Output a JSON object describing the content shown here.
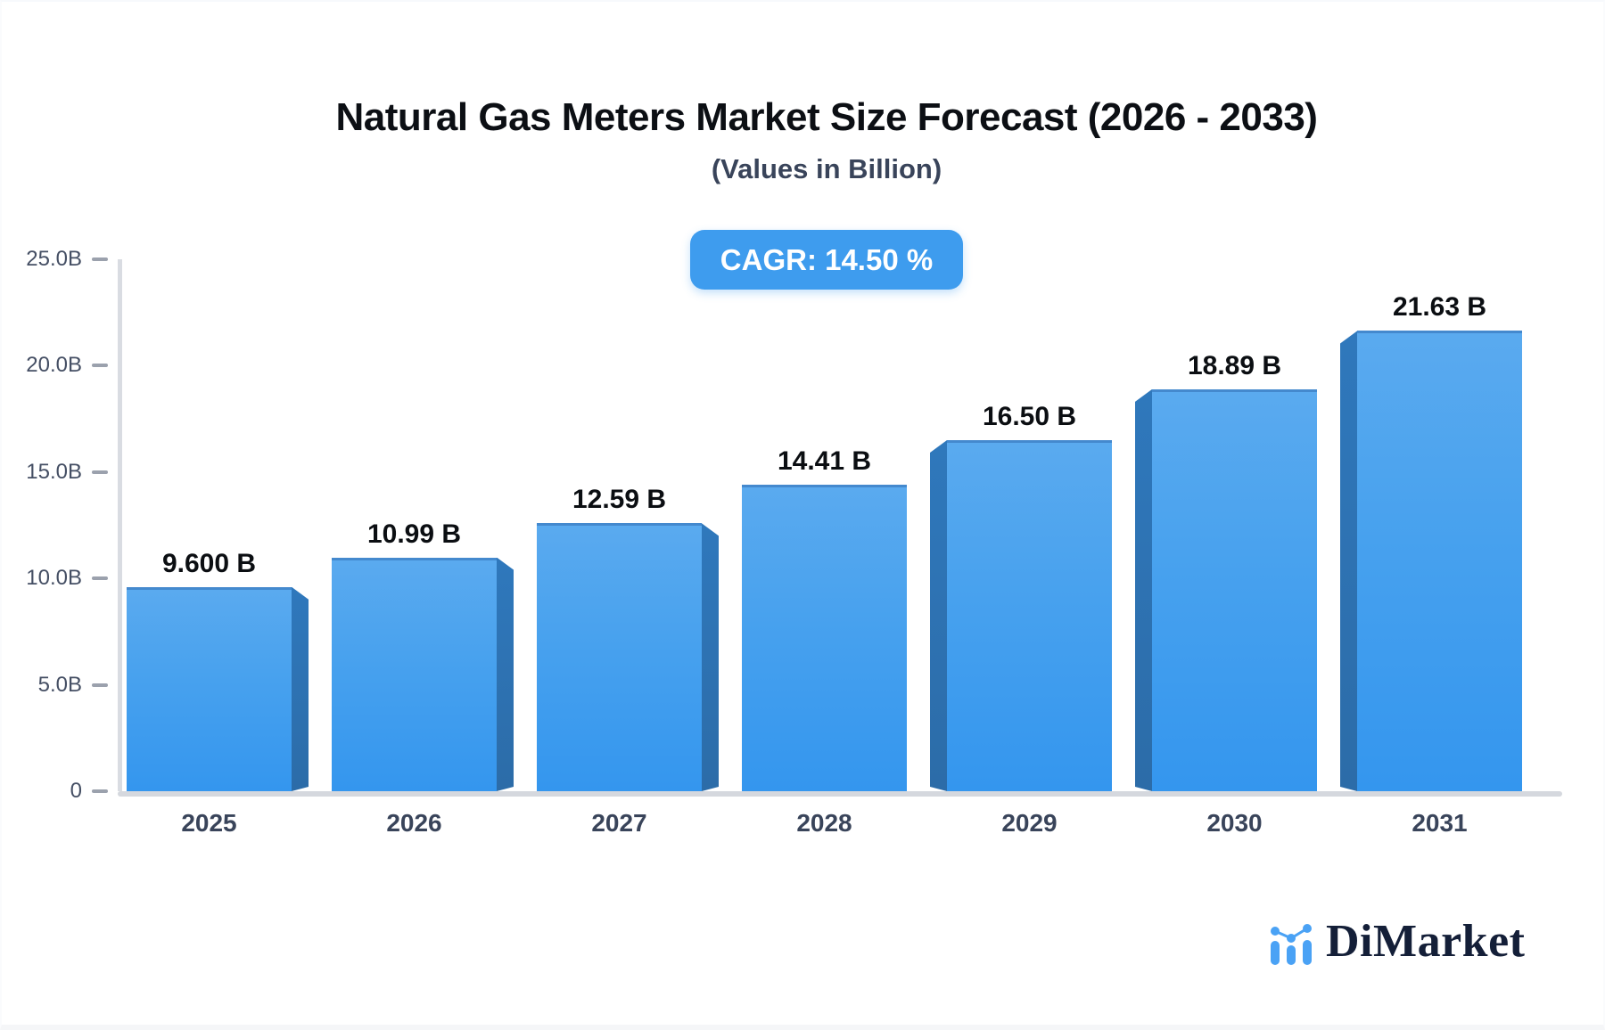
{
  "header": {
    "title": "Natural Gas Meters Market Size Forecast (2026 - 2033)",
    "subtitle": "(Values in Billion)",
    "cagr_badge": "CAGR: 14.50 %"
  },
  "chart_data": {
    "type": "bar",
    "title": "Natural Gas Meters Market Size Forecast (2026 - 2033)",
    "subtitle": "(Values in Billion)",
    "cagr_percent": 14.5,
    "categories": [
      "2025",
      "2026",
      "2027",
      "2028",
      "2029",
      "2030",
      "2031"
    ],
    "values": [
      9.6,
      10.99,
      12.59,
      14.41,
      16.5,
      18.89,
      21.63
    ],
    "value_labels": [
      "9.600 B",
      "10.99 B",
      "12.59 B",
      "14.41 B",
      "16.50 B",
      "18.89 B",
      "21.63 B"
    ],
    "y_ticks": [
      {
        "label": "25.0B",
        "value": 25
      },
      {
        "label": "20.0B",
        "value": 20
      },
      {
        "label": "15.0B",
        "value": 15
      },
      {
        "label": "10.0B",
        "value": 10
      },
      {
        "label": "5.0B",
        "value": 5
      },
      {
        "label": "0",
        "value": 0
      }
    ],
    "ylim": [
      0,
      25
    ],
    "grid": false,
    "legend": "none",
    "colors": {
      "bar_face_top": "#5aaaef",
      "bar_face_bottom": "#3496ee",
      "bar_side": "#2e73b2",
      "badge_blue": "#3e9cee",
      "axis_gray": "#d9dce2",
      "tick_text": "#454f64",
      "label_text": "#0b0e12"
    }
  },
  "logo": {
    "text": "DiMarket",
    "icon": "bar-chart-logo-icon"
  }
}
